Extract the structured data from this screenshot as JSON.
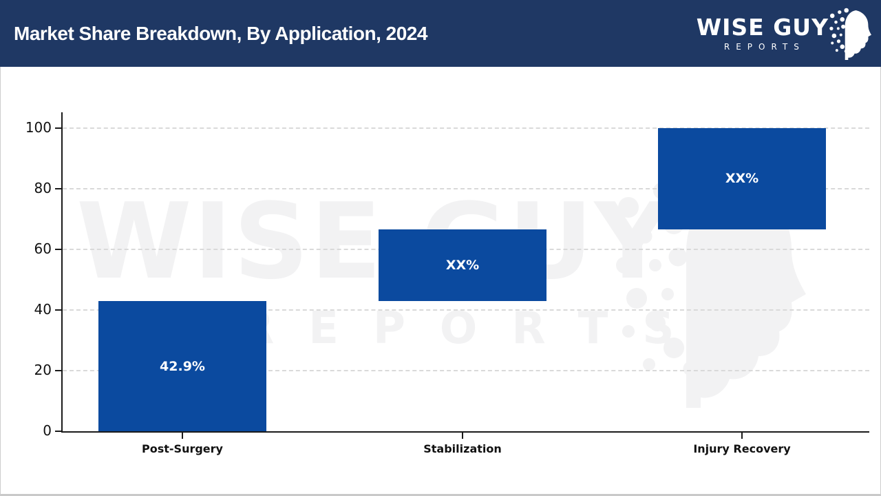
{
  "header": {
    "title": "Market Share Breakdown, By Application, 2024",
    "bg_color": "#1F3864",
    "logo": {
      "line1": "WISE GUY",
      "line2": "REPORTS"
    }
  },
  "watermark": {
    "line1": "WISE GUY",
    "line2": "REPORTS"
  },
  "chart_data": {
    "type": "bar",
    "subtype": "waterfall",
    "title": "Market Share Breakdown, By Application, 2024",
    "categories": [
      "Post-Surgery",
      "Stabilization",
      "Injury Recovery"
    ],
    "segments": [
      {
        "category": "Post-Surgery",
        "start": 0,
        "end": 42.9,
        "label": "42.9%"
      },
      {
        "category": "Stabilization",
        "start": 42.9,
        "end": 66.6,
        "label": "XX%"
      },
      {
        "category": "Injury Recovery",
        "start": 66.6,
        "end": 100,
        "label": "XX%"
      }
    ],
    "xlabel": "",
    "ylabel": "",
    "ylim": [
      0,
      100
    ],
    "yticks": [
      0,
      20,
      40,
      60,
      80,
      100
    ],
    "grid": "horizontal-dashed",
    "legend": "none",
    "bar_color": "#0B4A9F",
    "bar_label_color": "#FFFFFF",
    "axis_color": "#1a1a1a",
    "grid_color": "#d9d9d9"
  }
}
